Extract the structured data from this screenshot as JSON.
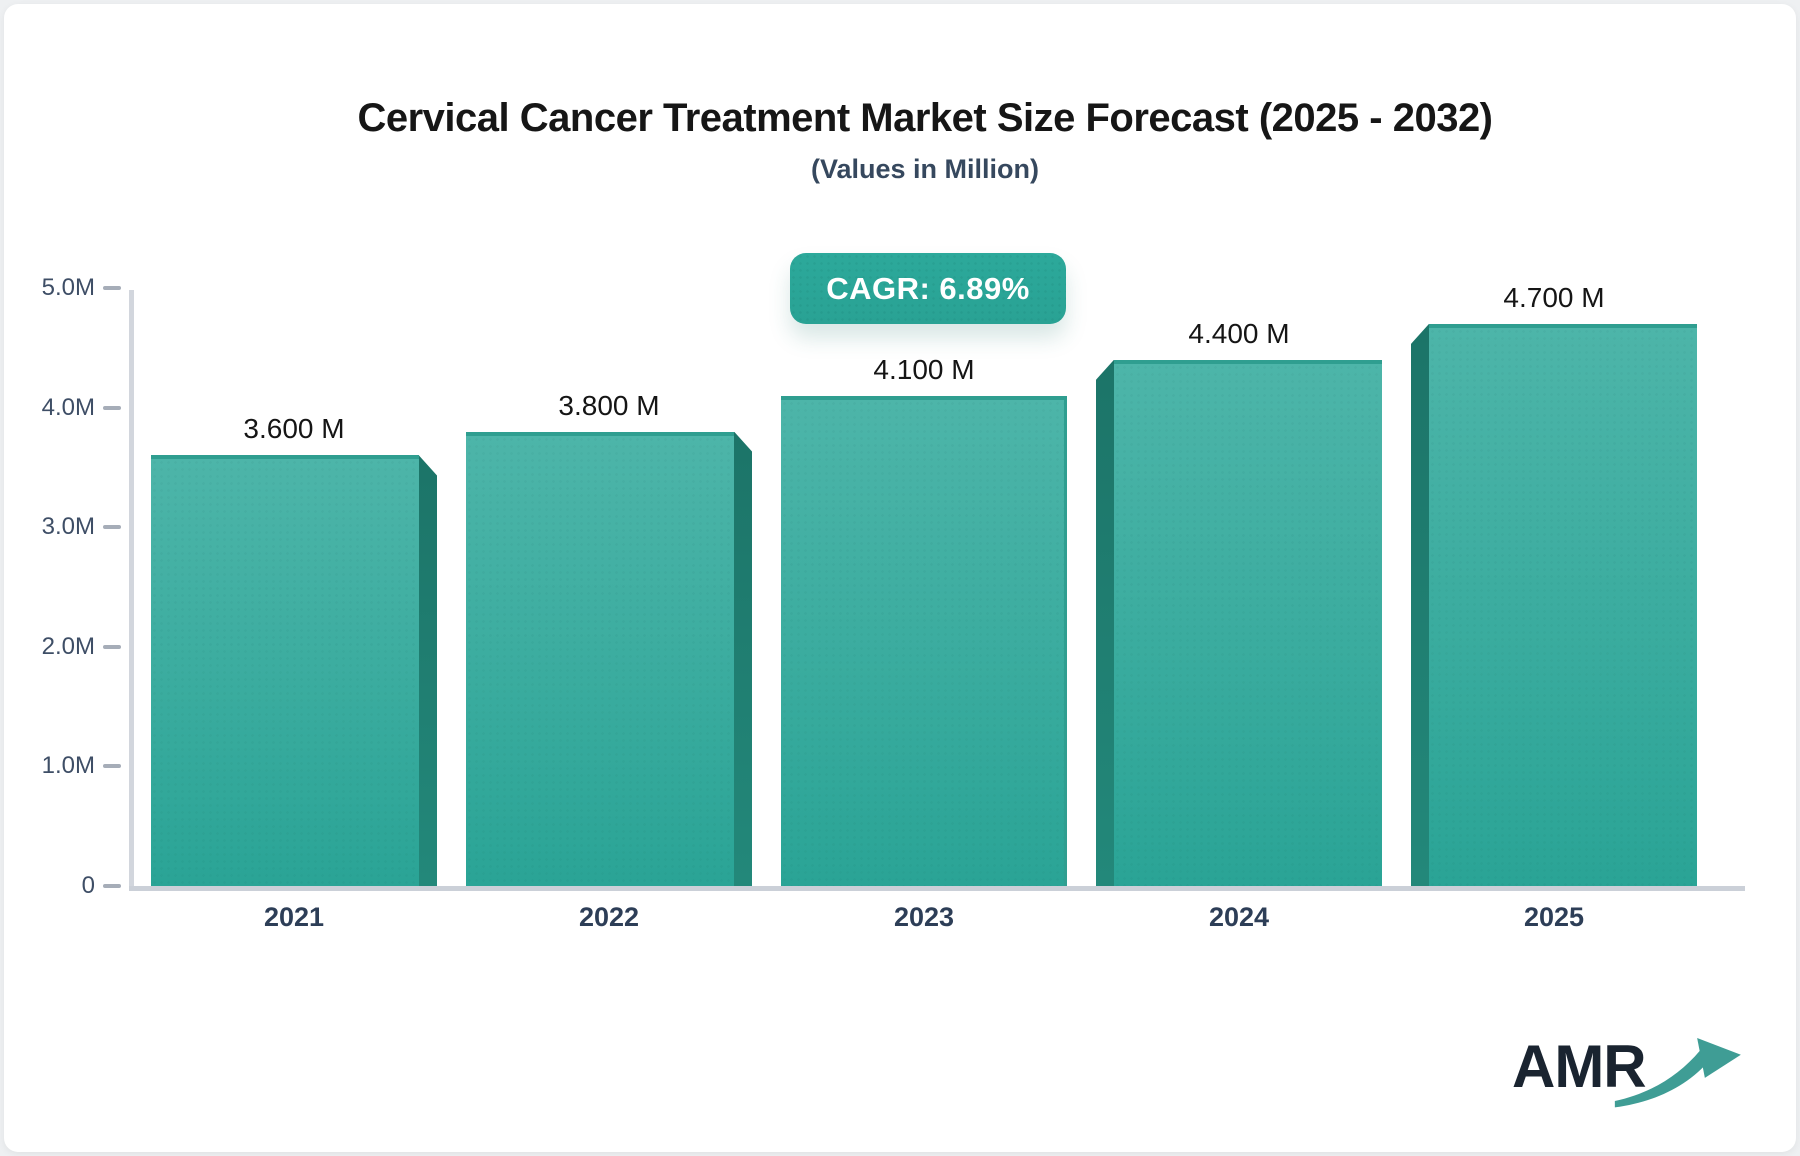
{
  "title": "Cervical Cancer Treatment Market Size Forecast (2025 - 2032)",
  "subtitle": "(Values in Million)",
  "badge": {
    "label": "CAGR: 6.89%"
  },
  "logo": {
    "text": "AMR",
    "icon": "growth-arrow-icon",
    "arrow_color": "#3f9d95",
    "text_color": "#1a2430"
  },
  "colors": {
    "bar_top": "#4db5a9",
    "bar_bottom": "#2aa496",
    "bar_side": "#1e7a6e",
    "badge_bg": "#2ba89a",
    "axis_line": "#d2d6dd",
    "tick_text": "#3e4e66",
    "category_text": "#2d3e57"
  },
  "chart_data": {
    "type": "bar",
    "title": "Cervical Cancer Treatment Market Size Forecast (2025 - 2032)",
    "subtitle": "(Values in Million)",
    "categories": [
      "2021",
      "2022",
      "2023",
      "2024",
      "2025"
    ],
    "values": [
      3.6,
      3.8,
      4.1,
      4.4,
      4.7
    ],
    "value_labels": [
      "3.600 M",
      "3.800 M",
      "4.100 M",
      "4.400 M",
      "4.700 M"
    ],
    "unit": "Million",
    "xlabel": "",
    "ylabel": "",
    "ylim": [
      0,
      5
    ],
    "yticks": [
      {
        "label": "5.0M",
        "value": 5.0
      },
      {
        "label": "4.0M",
        "value": 4.0
      },
      {
        "label": "3.0M",
        "value": 3.0
      },
      {
        "label": "2.0M",
        "value": 2.0
      },
      {
        "label": "1.0M",
        "value": 1.0
      },
      {
        "label": "0",
        "value": 0.0
      }
    ],
    "grid": false,
    "legend": "none",
    "annotations": [
      "CAGR: 6.89%"
    ]
  }
}
